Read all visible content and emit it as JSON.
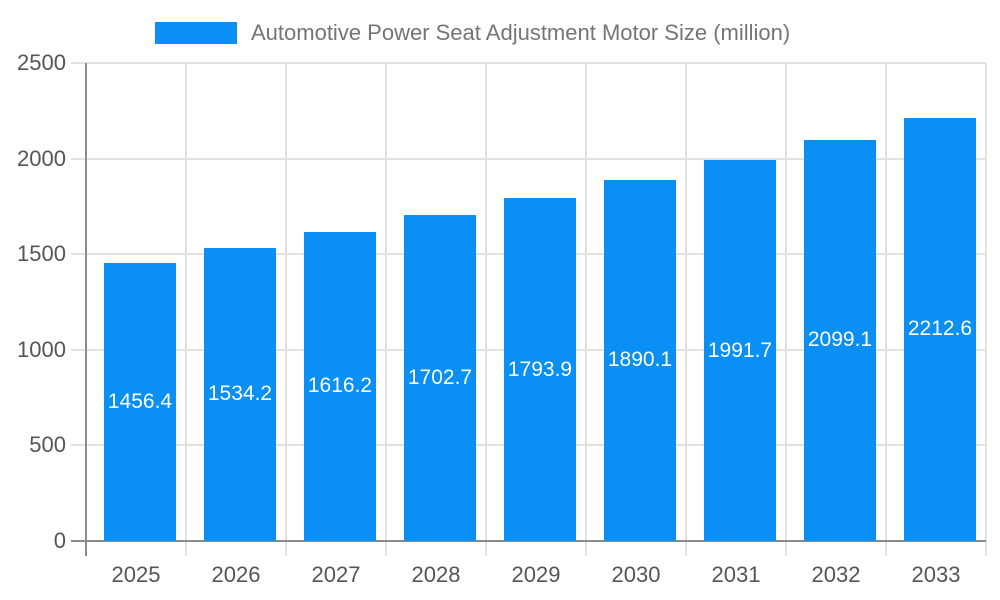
{
  "chart_data": {
    "type": "bar",
    "title": "Automotive Power Seat Adjustment Motor Size (million)",
    "categories": [
      "2025",
      "2026",
      "2027",
      "2028",
      "2029",
      "2030",
      "2031",
      "2032",
      "2033"
    ],
    "values": [
      1456.4,
      1534.2,
      1616.2,
      1702.7,
      1793.9,
      1890.1,
      1991.7,
      2099.1,
      2212.6
    ],
    "xlabel": "",
    "ylabel": "",
    "ylim": [
      0,
      2500
    ],
    "yticks": [
      0,
      500,
      1000,
      1500,
      2000,
      2500
    ],
    "grid": true,
    "legend_position": "top",
    "value_label_position": "inside-center"
  },
  "colors": {
    "bar": "#0A8FF5",
    "bar_label": "#FFFFFF",
    "axis_line": "#8C8C8C",
    "grid_line": "#E2E2E2",
    "tick_label": "#555555",
    "legend_text": "#757575",
    "background": "#FFFFFF"
  }
}
